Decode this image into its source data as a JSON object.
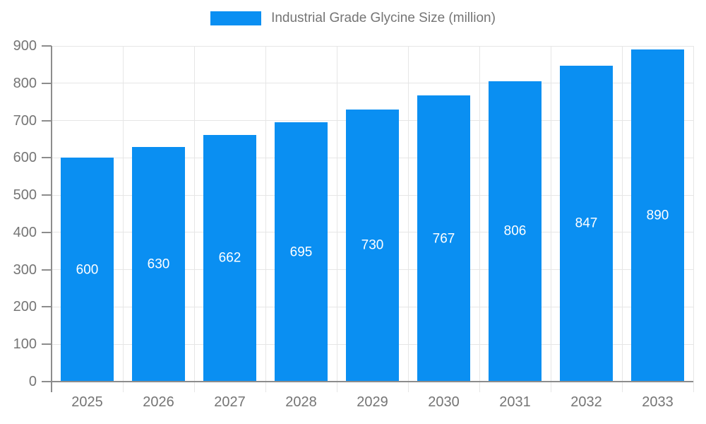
{
  "chart_data": {
    "type": "bar",
    "title": "Industrial Grade Glycine Size (million)",
    "categories": [
      "2025",
      "2026",
      "2027",
      "2028",
      "2029",
      "2030",
      "2031",
      "2032",
      "2033"
    ],
    "values": [
      600,
      630,
      662,
      695,
      730,
      767,
      806,
      847,
      890
    ],
    "series": [
      {
        "name": "Industrial Grade Glycine Size (million)",
        "values": [
          600,
          630,
          662,
          695,
          730,
          767,
          806,
          847,
          890
        ]
      }
    ],
    "yticks": [
      "0",
      "100",
      "200",
      "300",
      "400",
      "500",
      "600",
      "700",
      "800",
      "900"
    ],
    "ylim": [
      0,
      900
    ],
    "xlabel": "",
    "ylabel": "",
    "grid": true,
    "legend_position": "top-center",
    "bar_label_position": "inside-middle",
    "colors": {
      "bar": "#0A8FF2",
      "axis": "#8C8C8C",
      "grid": "#E6E6E6",
      "tick_text": "#757575",
      "bar_label_text": "#FFFFFF",
      "background": "#FFFFFF"
    }
  }
}
